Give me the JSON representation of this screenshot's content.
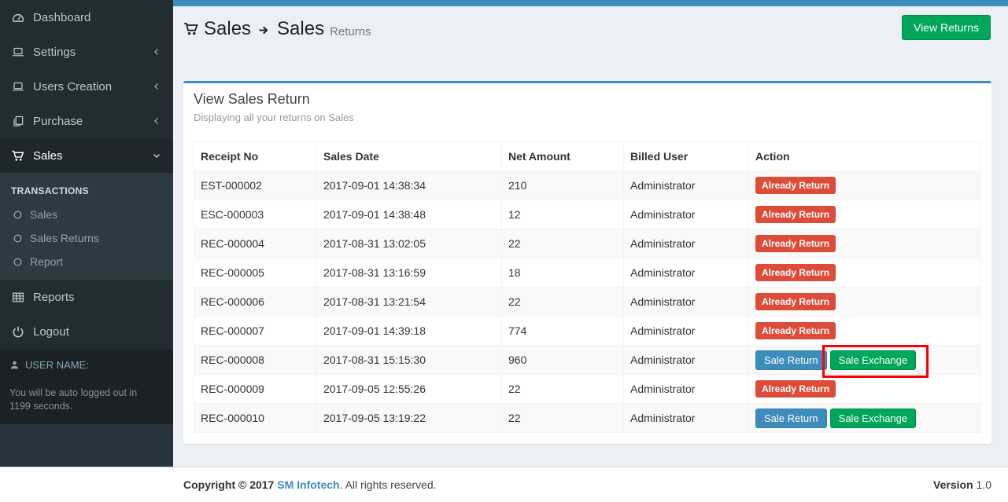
{
  "sidebar": {
    "items": [
      {
        "label": "Dashboard",
        "icon": "dashboard-icon",
        "chevron": "none",
        "active": false
      },
      {
        "label": "Settings",
        "icon": "laptop-icon",
        "chevron": "left",
        "active": false
      },
      {
        "label": "Users Creation",
        "icon": "laptop-icon",
        "chevron": "left",
        "active": false
      },
      {
        "label": "Purchase",
        "icon": "copy-icon",
        "chevron": "left",
        "active": false
      },
      {
        "label": "Sales",
        "icon": "cart-icon",
        "chevron": "down",
        "active": true
      }
    ],
    "submenu_header": "TRANSACTIONS",
    "submenu": [
      {
        "label": "Sales"
      },
      {
        "label": "Sales Returns"
      },
      {
        "label": "Report"
      }
    ],
    "items_bottom": [
      {
        "label": "Reports",
        "icon": "table-icon"
      },
      {
        "label": "Logout",
        "icon": "power-icon"
      }
    ],
    "user_label": "USER NAME:",
    "auto_logout_text": "You will be auto logged out in 1199 seconds."
  },
  "header": {
    "breadcrumb_root": "Sales",
    "title": "Sales",
    "subtitle": "Returns",
    "view_returns_button": "View Returns"
  },
  "panel": {
    "title": "View Sales Return",
    "subtitle": "Displaying all your returns on Sales"
  },
  "table": {
    "columns": [
      "Receipt No",
      "Sales Date",
      "Net Amount",
      "Billed User",
      "Action"
    ],
    "action_labels": {
      "already_return": "Already Return",
      "sale_return": "Sale Return",
      "sale_exchange": "Sale Exchange"
    },
    "rows": [
      {
        "receipt_no": "EST-000002",
        "sales_date": "2017-09-01 14:38:34",
        "net_amount": "210",
        "billed_user": "Administrator",
        "actions": [
          "already_return"
        ]
      },
      {
        "receipt_no": "ESC-000003",
        "sales_date": "2017-09-01 14:38:48",
        "net_amount": "12",
        "billed_user": "Administrator",
        "actions": [
          "already_return"
        ]
      },
      {
        "receipt_no": "REC-000004",
        "sales_date": "2017-08-31 13:02:05",
        "net_amount": "22",
        "billed_user": "Administrator",
        "actions": [
          "already_return"
        ]
      },
      {
        "receipt_no": "REC-000005",
        "sales_date": "2017-08-31 13:16:59",
        "net_amount": "18",
        "billed_user": "Administrator",
        "actions": [
          "already_return"
        ]
      },
      {
        "receipt_no": "REC-000006",
        "sales_date": "2017-08-31 13:21:54",
        "net_amount": "22",
        "billed_user": "Administrator",
        "actions": [
          "already_return"
        ]
      },
      {
        "receipt_no": "REC-000007",
        "sales_date": "2017-09-01 14:39:18",
        "net_amount": "774",
        "billed_user": "Administrator",
        "actions": [
          "already_return"
        ]
      },
      {
        "receipt_no": "REC-000008",
        "sales_date": "2017-08-31 15:15:30",
        "net_amount": "960",
        "billed_user": "Administrator",
        "actions": [
          "sale_return",
          "sale_exchange"
        ],
        "highlighted_action": "sale_exchange"
      },
      {
        "receipt_no": "REC-000009",
        "sales_date": "2017-09-05 12:55:26",
        "net_amount": "22",
        "billed_user": "Administrator",
        "actions": [
          "already_return"
        ]
      },
      {
        "receipt_no": "REC-000010",
        "sales_date": "2017-09-05 13:19:22",
        "net_amount": "22",
        "billed_user": "Administrator",
        "actions": [
          "sale_return",
          "sale_exchange"
        ]
      }
    ]
  },
  "footer": {
    "copyright_prefix": "Copyright © 2017",
    "company": "SM Infotech",
    "copyright_suffix": ". All rights reserved.",
    "version_label": "Version",
    "version_value": "1.0"
  },
  "colors": {
    "accent_blue": "#3c8dbc",
    "success_green": "#00a65a",
    "danger_red": "#dd4b39",
    "highlight_red": "#fd0000",
    "sidebar_bg": "#222d32",
    "content_bg": "#ecf0f5"
  }
}
